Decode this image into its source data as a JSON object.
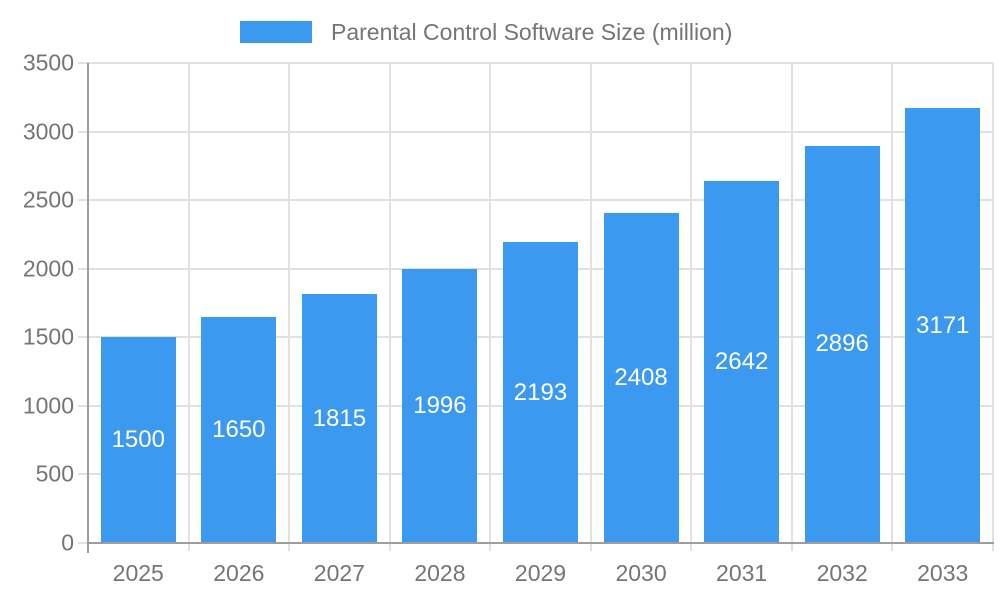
{
  "chart_data": {
    "type": "bar",
    "title": "Parental Control Software Size (million)",
    "categories": [
      "2025",
      "2026",
      "2027",
      "2028",
      "2029",
      "2030",
      "2031",
      "2032",
      "2033"
    ],
    "values": [
      1500,
      1650,
      1815,
      1996,
      2193,
      2408,
      2642,
      2896,
      3171
    ],
    "xlabel": "",
    "ylabel": "",
    "ylim": [
      0,
      3500
    ],
    "ytick_step": 500,
    "yticks": [
      0,
      500,
      1000,
      1500,
      2000,
      2500,
      3000,
      3500
    ],
    "grid": "horizontal and vertical, light gray",
    "legend_position": "top-center",
    "colors": {
      "bar": "#3C99F0",
      "grid": "#e1e1e1",
      "axis": "#9e9e9e",
      "tick_label": "#757575",
      "value_label": "#ffffff",
      "background": "#ffffff"
    }
  }
}
